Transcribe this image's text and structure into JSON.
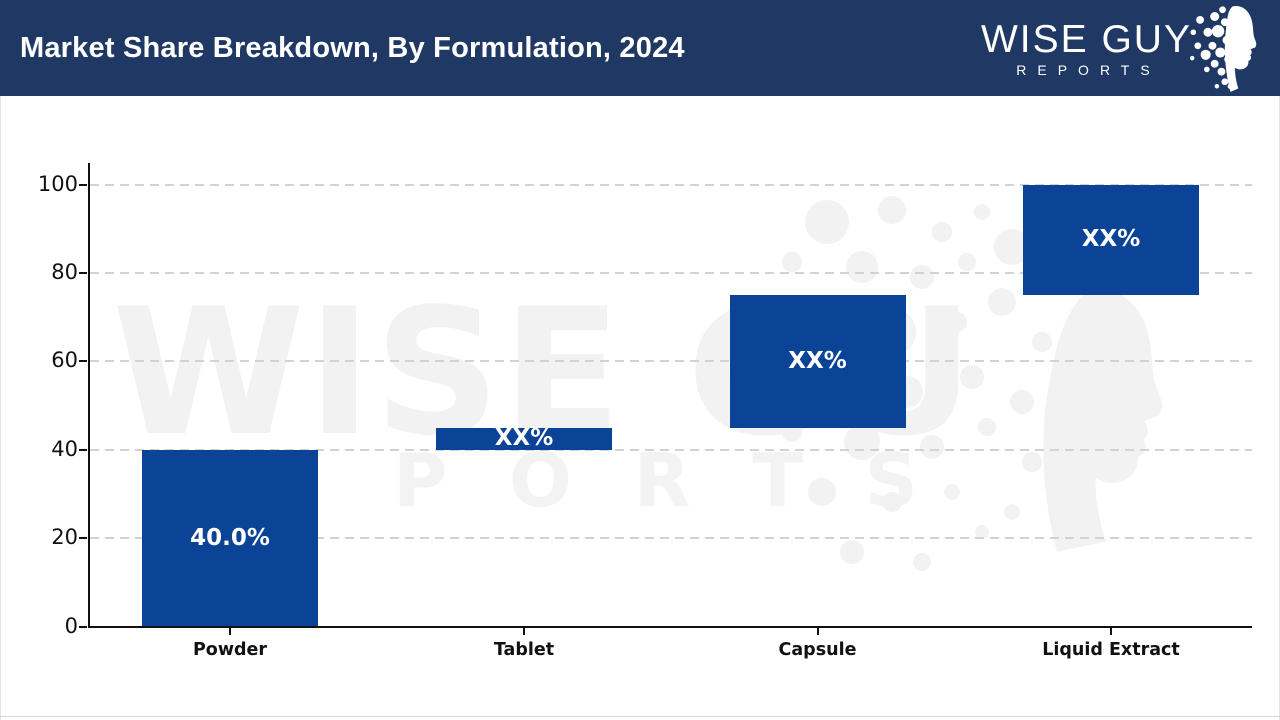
{
  "header": {
    "title": "Market Share Breakdown, By Formulation, 2024",
    "logo": {
      "line1": "WISE GUY",
      "line2": "REPORTS"
    }
  },
  "watermark": {
    "line1": "WISE GU",
    "line2": "P O R T S"
  },
  "chart_data": {
    "type": "bar",
    "subtype": "waterfall",
    "title": "Market Share Breakdown, By Formulation, 2024",
    "categories": [
      "Powder",
      "Tablet",
      "Capsule",
      "Liquid Extract"
    ],
    "segments": [
      {
        "category": "Powder",
        "start": 0,
        "end": 40,
        "label": "40.0%"
      },
      {
        "category": "Tablet",
        "start": 40,
        "end": 45,
        "label": "XX%"
      },
      {
        "category": "Capsule",
        "start": 45,
        "end": 75,
        "label": "XX%"
      },
      {
        "category": "Liquid Extract",
        "start": 75,
        "end": 100,
        "label": "XX%"
      }
    ],
    "yticks": [
      0,
      20,
      40,
      60,
      80,
      100
    ],
    "ylim": [
      0,
      105
    ],
    "xlabel": "",
    "ylabel": "",
    "grid": "horizontal-dashed",
    "legend": "none",
    "bar_color": "#0b4397"
  },
  "colors": {
    "header_bg": "#1f3864",
    "bar": "#0b4397",
    "grid": "#d2d2d2",
    "axis": "#111111",
    "watermark": "#f2f2f3"
  }
}
